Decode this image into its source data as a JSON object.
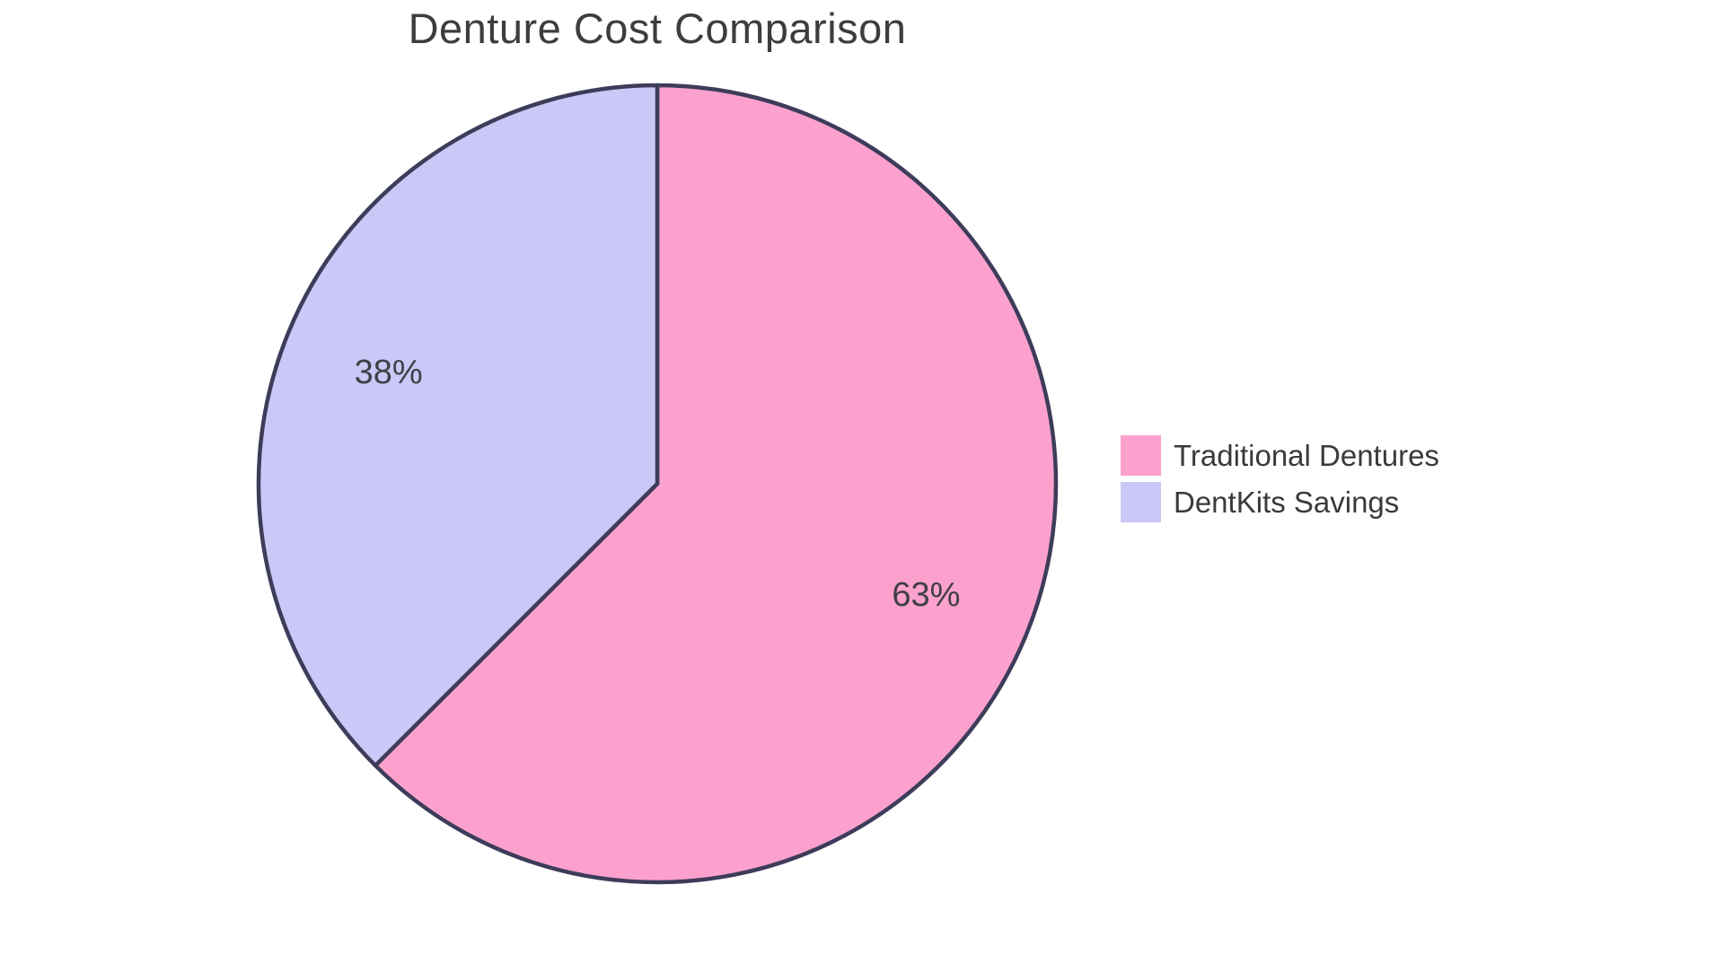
{
  "chart_data": {
    "type": "pie",
    "title": "Denture Cost Comparison",
    "slices": [
      {
        "label": "Traditional Dentures",
        "value": 62.5,
        "display_pct": "63%",
        "color": "#FCA1CD"
      },
      {
        "label": "DentKits Savings",
        "value": 37.5,
        "display_pct": "38%",
        "color": "#C9C8F6"
      }
    ],
    "start_angle": "12-oclock",
    "direction": "clockwise",
    "stroke_color": "#3D3C5A",
    "stroke_width": 4.5,
    "title_color": "#3D3D3D",
    "label_color": "#3F3F46",
    "legend_position": "right",
    "background": "#FFFFFF"
  }
}
